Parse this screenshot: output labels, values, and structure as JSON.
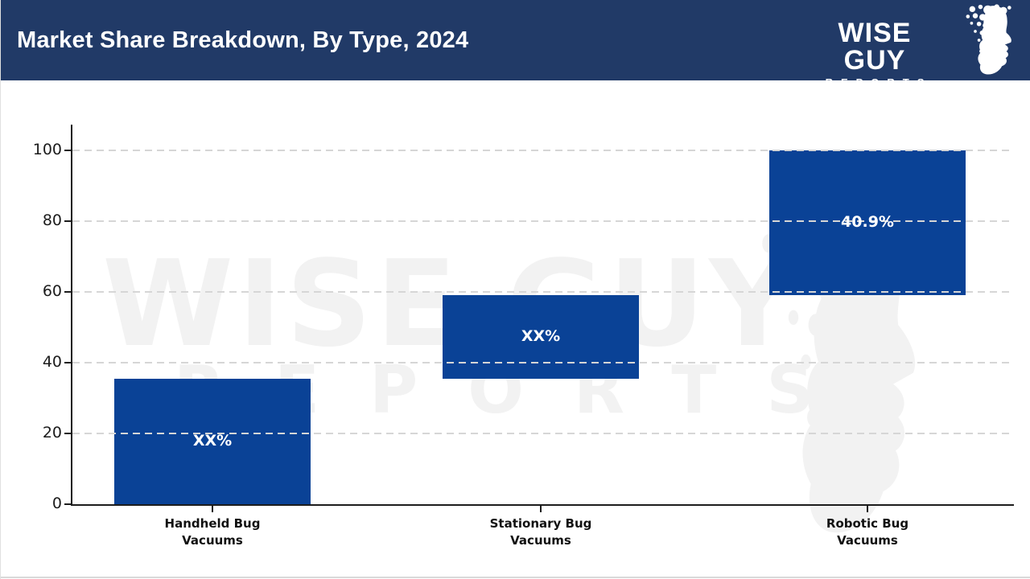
{
  "header": {
    "title": "Market Share Breakdown, By Type, 2024",
    "logo": {
      "line1": "WISE GUY",
      "line2": "REPORTS"
    }
  },
  "watermark": {
    "line1": "WISE GUY",
    "line2": "REPORTS"
  },
  "colors": {
    "header_bg": "#213a67",
    "bar": "#0a4296",
    "grid": "#d6d6d6",
    "axis": "#1c1c1c",
    "bar_label_text": "#ffffff",
    "watermark": "#f2f2f2"
  },
  "chart_data": {
    "type": "bar",
    "subtype": "waterfall-floating-bars",
    "title": "Market Share Breakdown, By Type, 2024",
    "xlabel": "",
    "ylabel": "",
    "categories": [
      "Handheld Bug Vacuums",
      "Stationary Bug Vacuums",
      "Robotic Bug Vacuums"
    ],
    "category_lines": [
      [
        "Handheld Bug",
        "Vacuums"
      ],
      [
        "Stationary Bug",
        "Vacuums"
      ],
      [
        "Robotic Bug",
        "Vacuums"
      ]
    ],
    "segments": [
      {
        "category": "Handheld Bug Vacuums",
        "start": 0,
        "end": 35.4,
        "value": 35.4,
        "label": "XX%"
      },
      {
        "category": "Stationary Bug Vacuums",
        "start": 35.4,
        "end": 59.1,
        "value": 23.7,
        "label": "XX%"
      },
      {
        "category": "Robotic Bug Vacuums",
        "start": 59.1,
        "end": 100,
        "value": 40.9,
        "label": "40.9%"
      }
    ],
    "yticks": [
      0,
      20,
      40,
      60,
      80,
      100
    ],
    "ylim": [
      0,
      107
    ],
    "grid": {
      "axis": "y",
      "style": "dashed",
      "drawn_over_bars": true
    },
    "legend": "none"
  }
}
